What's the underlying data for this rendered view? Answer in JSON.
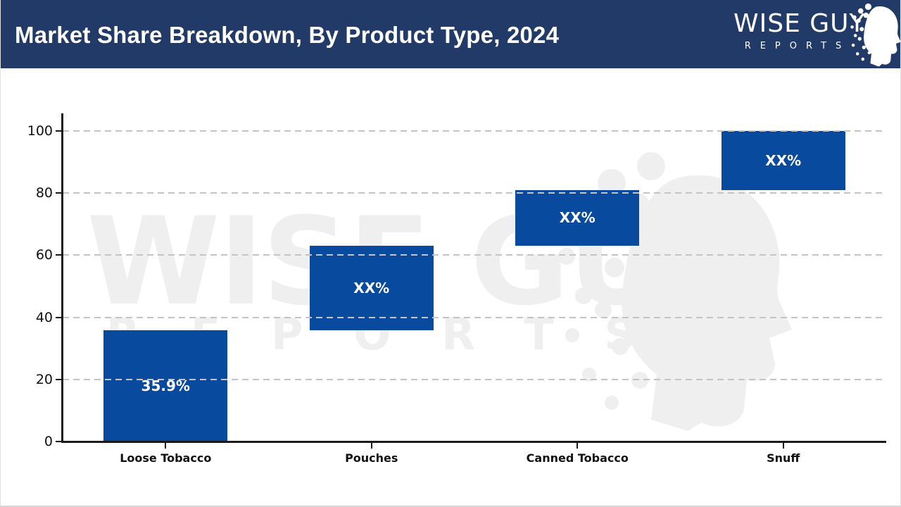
{
  "header": {
    "title": "Market Share Breakdown, By Product Type, 2024",
    "logo": {
      "brand_line1": "WISE GUY",
      "brand_line2": "REPORTS"
    }
  },
  "watermark": {
    "line1": "WISE GUY",
    "line2": "REPORTS"
  },
  "colors": {
    "header_bg": "#213a67",
    "bar": "#084a9e",
    "bar_label": "#ffffff",
    "axis": "#1a1a1a",
    "gridline": "#c4c4c4",
    "watermark": "#efefef"
  },
  "chart_data": {
    "type": "bar",
    "subtype": "waterfall",
    "title": "Market Share Breakdown, By Product Type, 2024",
    "categories": [
      "Loose Tobacco",
      "Pouches",
      "Canned Tobacco",
      "Snuff"
    ],
    "segments": [
      {
        "category": "Loose Tobacco",
        "start": 0,
        "end": 35.9,
        "label": "35.9%"
      },
      {
        "category": "Pouches",
        "start": 35.9,
        "end": 63,
        "label": "XX%"
      },
      {
        "category": "Canned Tobacco",
        "start": 63,
        "end": 81,
        "label": "XX%"
      },
      {
        "category": "Snuff",
        "start": 81,
        "end": 100,
        "label": "XX%"
      }
    ],
    "xlabel": "",
    "ylabel": "",
    "ylim": [
      0,
      100
    ],
    "yticks": [
      0,
      20,
      40,
      60,
      80,
      100
    ],
    "grid": "horizontal-dashed",
    "legend": "none"
  }
}
